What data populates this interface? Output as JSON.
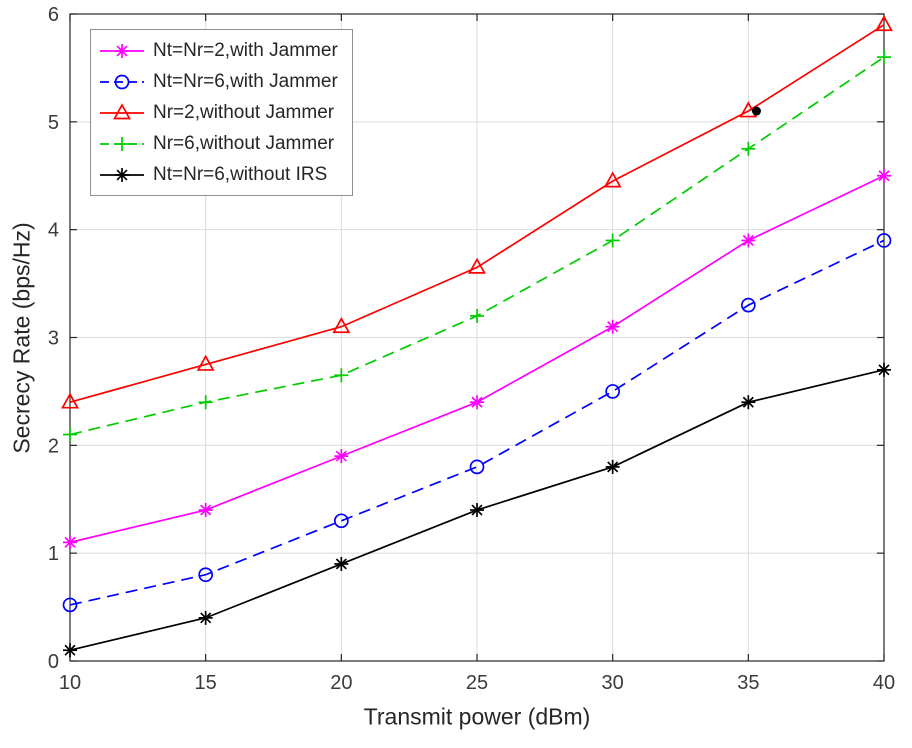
{
  "figure": {
    "background": "#ffffff",
    "grid_color": "#dbdbdb",
    "axis_color": "#262626",
    "tick_label_color": "#3b3b3b"
  },
  "chart_data": {
    "type": "line",
    "title": "",
    "xlabel": "Transmit power (dBm)",
    "ylabel": "Secrecy Rate (bps/Hz)",
    "xlim": [
      10,
      40
    ],
    "ylim": [
      0,
      6
    ],
    "xticks": [
      10,
      15,
      20,
      25,
      30,
      35,
      40
    ],
    "yticks": [
      0,
      1,
      2,
      3,
      4,
      5,
      6
    ],
    "grid": true,
    "legend_position": "top-left",
    "x": [
      10,
      15,
      20,
      25,
      30,
      35,
      40
    ],
    "series": [
      {
        "name": "Nt=Nr=2,with Jammer",
        "color": "#ff00ff",
        "line_style": "solid",
        "marker": "asterisk",
        "values": [
          1.1,
          1.4,
          1.9,
          2.4,
          3.1,
          3.9,
          4.5
        ]
      },
      {
        "name": "Nt=Nr=6,with Jammer",
        "color": "#0000ff",
        "line_style": "dashed",
        "marker": "circle",
        "values": [
          0.52,
          0.8,
          1.3,
          1.8,
          2.5,
          3.3,
          3.9
        ]
      },
      {
        "name": "Nr=2,without Jammer",
        "color": "#ff0000",
        "line_style": "solid",
        "marker": "triangle",
        "values": [
          2.4,
          2.75,
          3.1,
          3.65,
          4.45,
          5.1,
          5.9
        ]
      },
      {
        "name": "Nr=6,without Jammer",
        "color": "#00cc00",
        "line_style": "dashed",
        "marker": "plus",
        "values": [
          2.1,
          2.4,
          2.65,
          3.2,
          3.9,
          4.75,
          5.6
        ]
      },
      {
        "name": "Nt=Nr=6,without IRS",
        "color": "#000000",
        "line_style": "solid",
        "marker": "asterisk",
        "values": [
          0.1,
          0.4,
          0.9,
          1.4,
          1.8,
          2.4,
          2.7
        ]
      }
    ],
    "annotation_point": {
      "x": 35.3,
      "y": 5.1,
      "marker": "filled-dot",
      "color": "#000000"
    }
  }
}
